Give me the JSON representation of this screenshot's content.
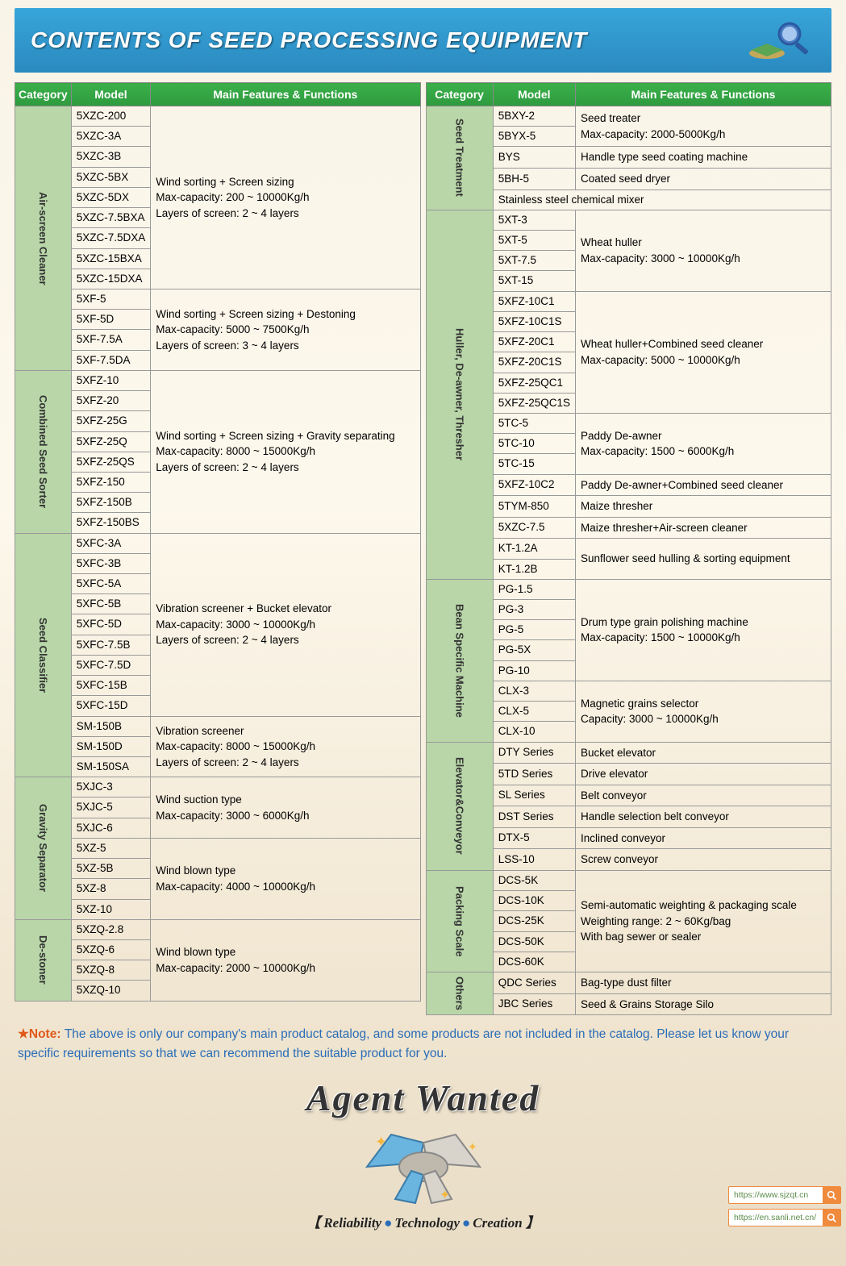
{
  "banner": {
    "title": "CONTENTS OF SEED PROCESSING EQUIPMENT"
  },
  "headers": {
    "category": "Category",
    "model": "Model",
    "features": "Main Features & Functions"
  },
  "left": [
    {
      "category": "Air-screen Cleaner",
      "groups": [
        {
          "models": [
            "5XZC-200",
            "5XZC-3A",
            "5XZC-3B",
            "5XZC-5BX",
            "5XZC-5DX",
            "5XZC-7.5BXA",
            "5XZC-7.5DXA",
            "5XZC-15BXA",
            "5XZC-15DXA"
          ],
          "feature": "Wind sorting + Screen sizing\nMax-capacity: 200 ~ 10000Kg/h\nLayers of screen: 2 ~ 4 layers"
        },
        {
          "models": [
            "5XF-5",
            "5XF-5D",
            "5XF-7.5A",
            "5XF-7.5DA"
          ],
          "feature": "Wind sorting + Screen sizing + Destoning\nMax-capacity: 5000 ~ 7500Kg/h\nLayers of screen: 3 ~ 4 layers"
        }
      ]
    },
    {
      "category": "Combined Seed Sorter",
      "groups": [
        {
          "models": [
            "5XFZ-10",
            "5XFZ-20",
            "5XFZ-25G",
            "5XFZ-25Q",
            "5XFZ-25QS",
            "5XFZ-150",
            "5XFZ-150B",
            "5XFZ-150BS"
          ],
          "feature": "Wind sorting + Screen sizing + Gravity separating\nMax-capacity: 8000 ~ 15000Kg/h\nLayers of screen: 2 ~ 4 layers"
        }
      ]
    },
    {
      "category": "Seed Classifier",
      "groups": [
        {
          "models": [
            "5XFC-3A",
            "5XFC-3B",
            "5XFC-5A",
            "5XFC-5B",
            "5XFC-5D",
            "5XFC-7.5B",
            "5XFC-7.5D",
            "5XFC-15B",
            "5XFC-15D"
          ],
          "feature": "Vibration screener + Bucket elevator\nMax-capacity: 3000 ~ 10000Kg/h\nLayers of screen: 2 ~ 4 layers"
        },
        {
          "models": [
            "SM-150B",
            "SM-150D",
            "SM-150SA"
          ],
          "feature": "Vibration screener\nMax-capacity: 8000 ~ 15000Kg/h\nLayers of screen: 2 ~ 4 layers"
        }
      ]
    },
    {
      "category": "Gravity Separator",
      "groups": [
        {
          "models": [
            "5XJC-3",
            "5XJC-5",
            "5XJC-6"
          ],
          "feature": "Wind suction type\nMax-capacity: 3000 ~ 6000Kg/h"
        },
        {
          "models": [
            "5XZ-5",
            "5XZ-5B",
            "5XZ-8",
            "5XZ-10"
          ],
          "feature": "Wind blown type\nMax-capacity: 4000 ~ 10000Kg/h"
        }
      ]
    },
    {
      "category": "De-stoner",
      "groups": [
        {
          "models": [
            "5XZQ-2.8",
            "5XZQ-6",
            "5XZQ-8",
            "5XZQ-10"
          ],
          "feature": "Wind blown type\nMax-capacity: 2000 ~ 10000Kg/h"
        }
      ]
    }
  ],
  "right": [
    {
      "category": "Seed Treatment",
      "groups": [
        {
          "models": [
            "5BXY-2",
            "5BYX-5"
          ],
          "feature": "Seed treater\nMax-capacity: 2000-5000Kg/h"
        },
        {
          "models": [
            "BYS"
          ],
          "feature": "Handle type seed coating machine"
        },
        {
          "models": [
            "5BH-5"
          ],
          "feature": "Coated seed dryer"
        }
      ],
      "fullrow": {
        "text": "Stainless steel chemical mixer"
      }
    },
    {
      "category": "Huller, De-awner, Thresher",
      "groups": [
        {
          "models": [
            "5XT-3",
            "5XT-5",
            "5XT-7.5",
            "5XT-15"
          ],
          "feature": "Wheat huller\nMax-capacity: 3000 ~ 10000Kg/h"
        },
        {
          "models": [
            "5XFZ-10C1",
            "5XFZ-10C1S",
            "5XFZ-20C1",
            "5XFZ-20C1S",
            "5XFZ-25QC1",
            "5XFZ-25QC1S"
          ],
          "feature": "Wheat huller+Combined seed cleaner\nMax-capacity: 5000 ~ 10000Kg/h"
        },
        {
          "models": [
            "5TC-5",
            "5TC-10",
            "5TC-15"
          ],
          "feature": "Paddy De-awner\nMax-capacity:  1500 ~ 6000Kg/h"
        },
        {
          "models": [
            "5XFZ-10C2"
          ],
          "feature": "Paddy De-awner+Combined seed cleaner"
        },
        {
          "models": [
            "5TYM-850"
          ],
          "feature": "Maize thresher"
        },
        {
          "models": [
            "5XZC-7.5"
          ],
          "feature": "Maize thresher+Air-screen cleaner"
        },
        {
          "models": [
            "KT-1.2A",
            "KT-1.2B"
          ],
          "feature": "Sunflower seed hulling & sorting equipment"
        }
      ]
    },
    {
      "category": "Bean Specific Machine",
      "groups": [
        {
          "models": [
            "PG-1.5",
            "PG-3",
            "PG-5",
            "PG-5X",
            "PG-10"
          ],
          "feature": "Drum type grain polishing machine\nMax-capacity: 1500 ~ 10000Kg/h"
        },
        {
          "models": [
            "CLX-3",
            "CLX-5",
            "CLX-10"
          ],
          "feature": "Magnetic grains selector\nCapacity: 3000 ~ 10000Kg/h"
        }
      ]
    },
    {
      "category": "Elevator&Conveyor",
      "groups": [
        {
          "models": [
            "DTY Series"
          ],
          "feature": "Bucket elevator"
        },
        {
          "models": [
            "5TD Series"
          ],
          "feature": "Drive elevator"
        },
        {
          "models": [
            "SL Series"
          ],
          "feature": "Belt conveyor"
        },
        {
          "models": [
            "DST Series"
          ],
          "feature": "Handle selection belt conveyor"
        },
        {
          "models": [
            "DTX-5"
          ],
          "feature": "Inclined conveyor"
        },
        {
          "models": [
            "LSS-10"
          ],
          "feature": "Screw conveyor"
        }
      ]
    },
    {
      "category": "Packing Scale",
      "groups": [
        {
          "models": [
            "DCS-5K",
            "DCS-10K",
            "DCS-25K",
            "DCS-50K",
            "DCS-60K"
          ],
          "feature": "Semi-automatic weighting & packaging scale\nWeighting range: 2 ~ 60Kg/bag\nWith bag sewer or sealer"
        }
      ]
    },
    {
      "category": "Others",
      "groups": [
        {
          "models": [
            "QDC Series"
          ],
          "feature": "Bag-type dust filter"
        },
        {
          "models": [
            "JBC Series"
          ],
          "feature": "Seed & Grains Storage Silo"
        }
      ]
    }
  ],
  "note": {
    "prefix": "★Note: ",
    "text": "The above is only our company's main product catalog, and some products are not included in the catalog. Please let us know your specific requirements so that we can recommend the suitable product for you."
  },
  "agent": {
    "title": "Agent Wanted",
    "slogan_parts": [
      "【 Reliability",
      "Technology",
      "Creation 】"
    ]
  },
  "search": [
    {
      "url": "https://www.sjzqt.cn"
    },
    {
      "url": "https://en.sanli.net.cn/"
    }
  ],
  "colors": {
    "header_bg": "#3bb04a",
    "cat_bg": "#b8d6a8",
    "banner_bg": "#2a8ac0",
    "border": "#999999",
    "note_text": "#2a6db8",
    "note_star": "#e05a1a",
    "search_border": "#f08a3c"
  }
}
